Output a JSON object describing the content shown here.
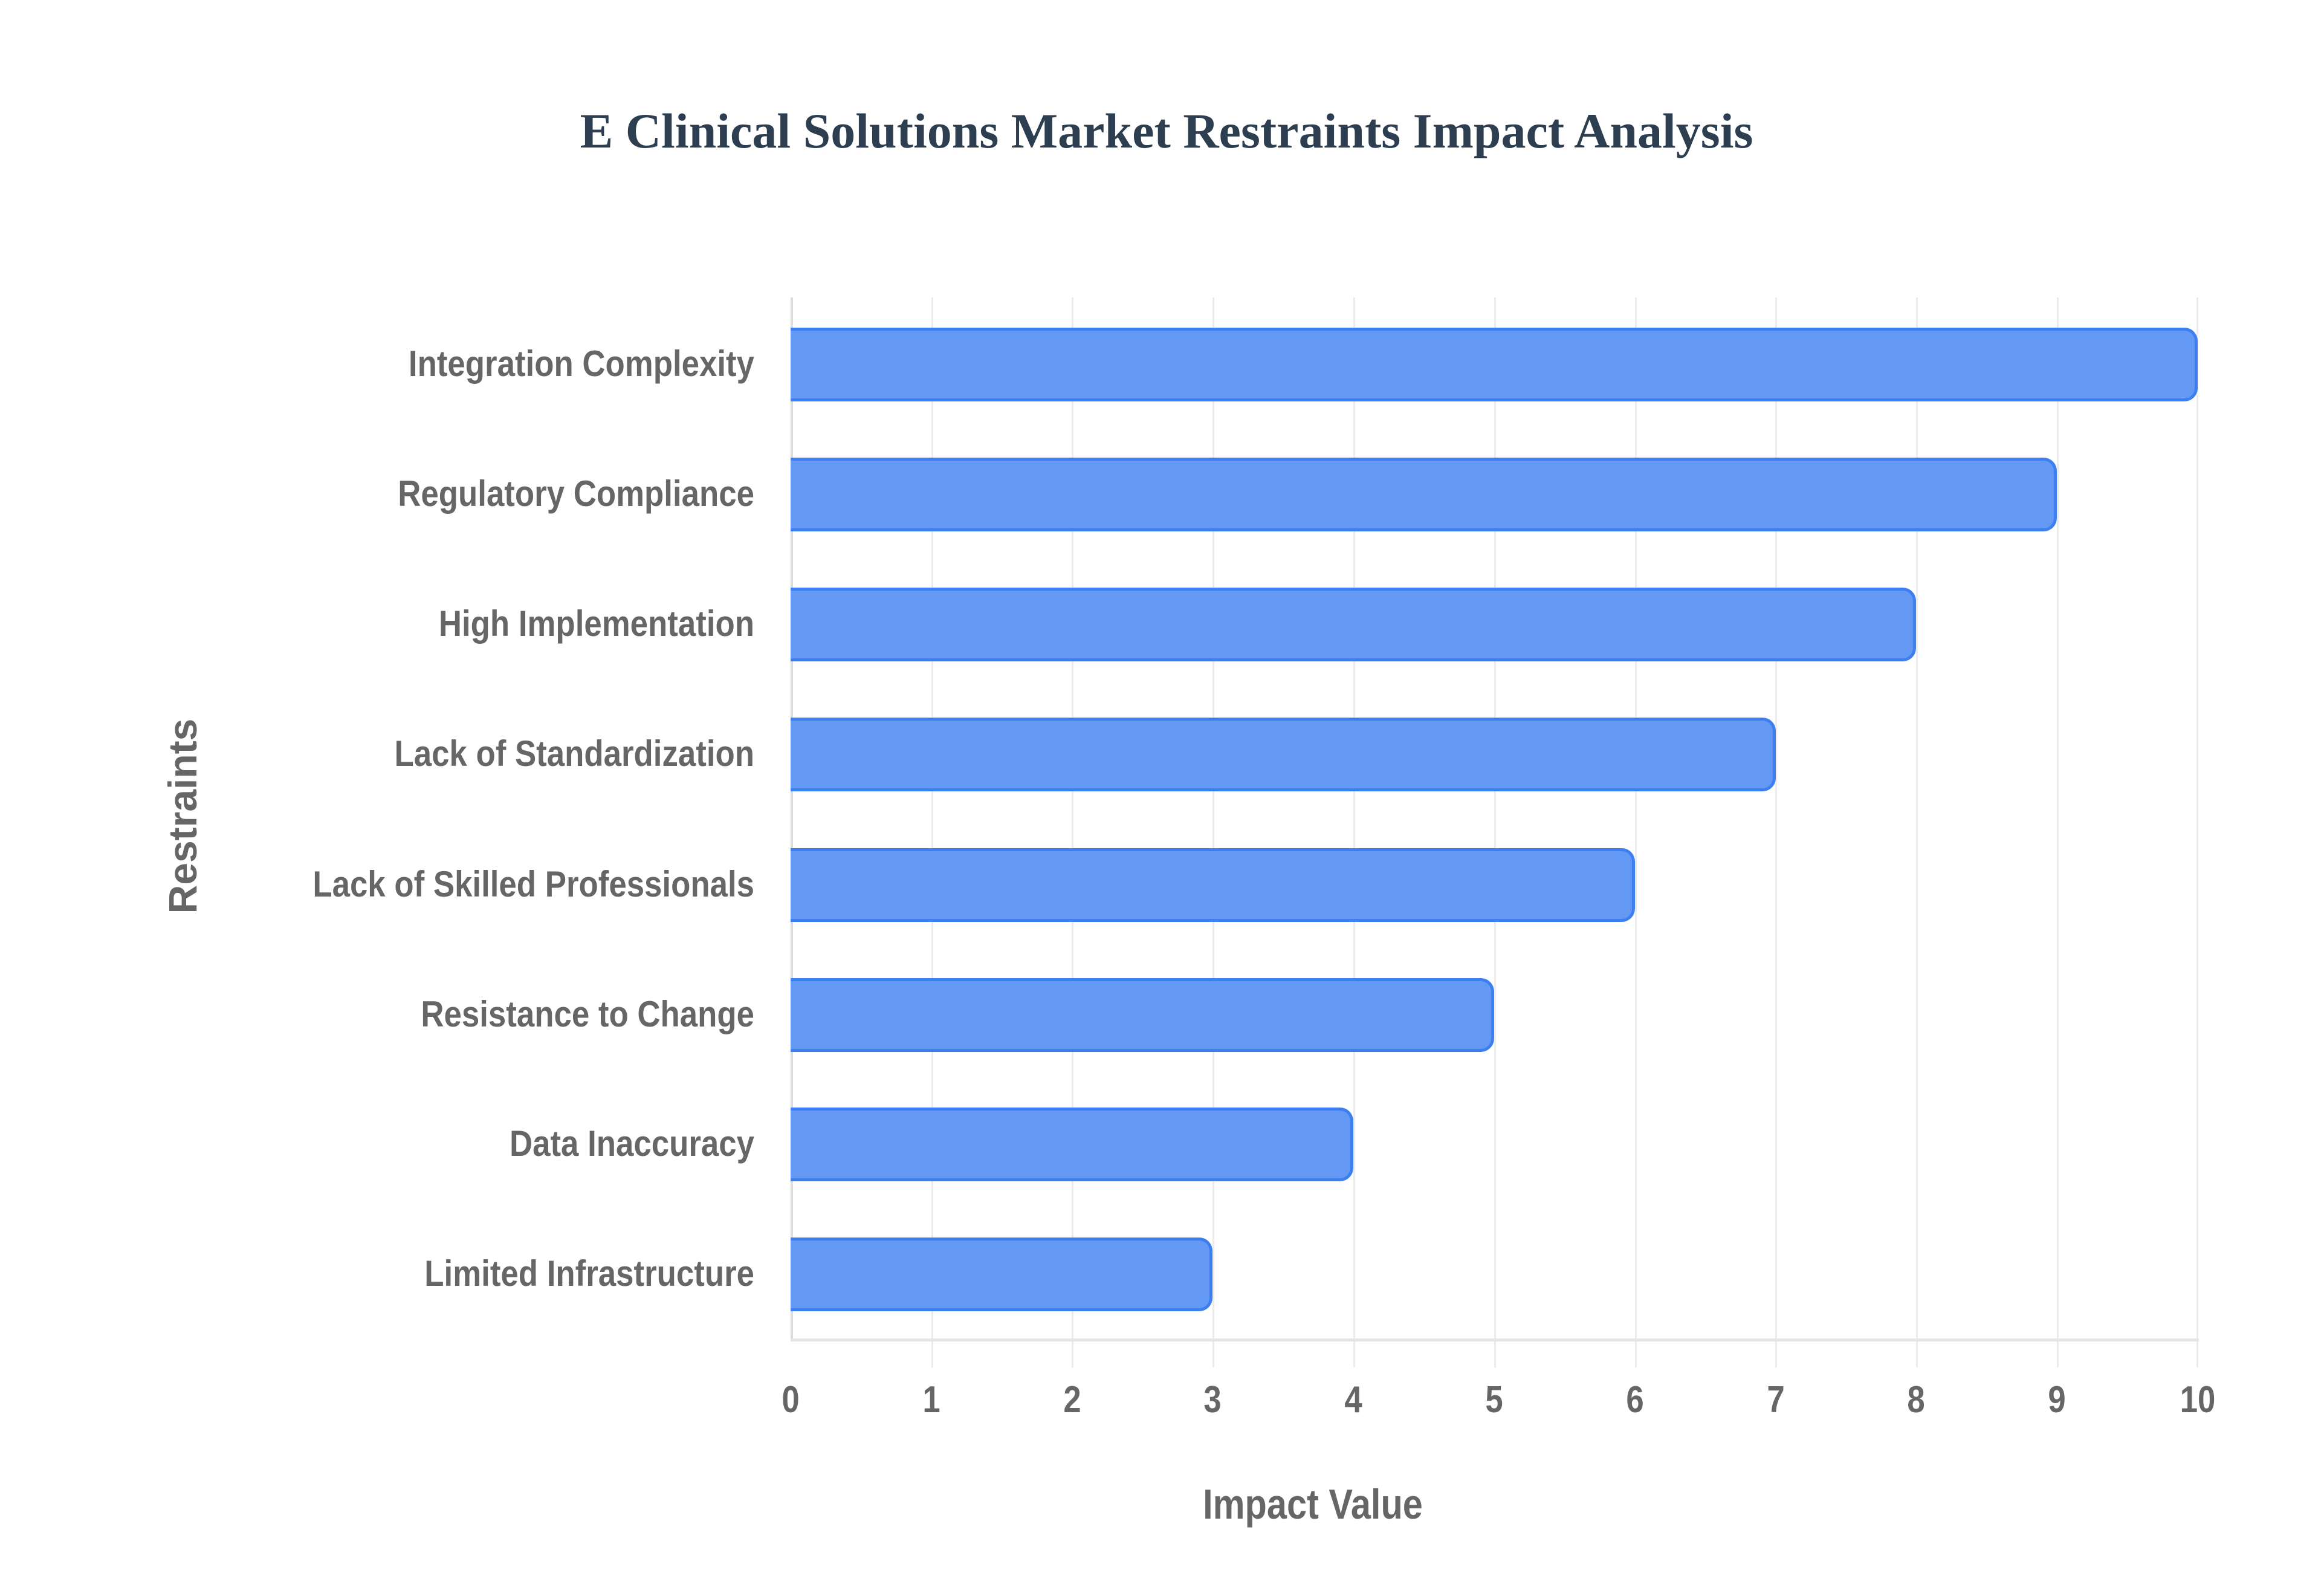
{
  "chart_data": {
    "type": "bar",
    "orientation": "horizontal",
    "title": "E Clinical Solutions Market Restraints Impact Analysis",
    "xlabel": "Impact Value",
    "ylabel": "Restraints",
    "categories": [
      "Integration Complexity",
      "Regulatory Compliance",
      "High Implementation",
      "Lack of Standardization",
      "Lack of Skilled Professionals",
      "Resistance to Change",
      "Data Inaccuracy",
      "Limited Infrastructure"
    ],
    "values": [
      10,
      9,
      8,
      7,
      6,
      5,
      4,
      3
    ],
    "xlim": [
      0,
      10
    ],
    "xticks": [
      "0",
      "1",
      "2",
      "3",
      "4",
      "5",
      "6",
      "7",
      "8",
      "9",
      "10"
    ],
    "grid": true,
    "legend": null,
    "bar_color": "#6399f5",
    "bar_border_color": "#3d7ff0"
  }
}
